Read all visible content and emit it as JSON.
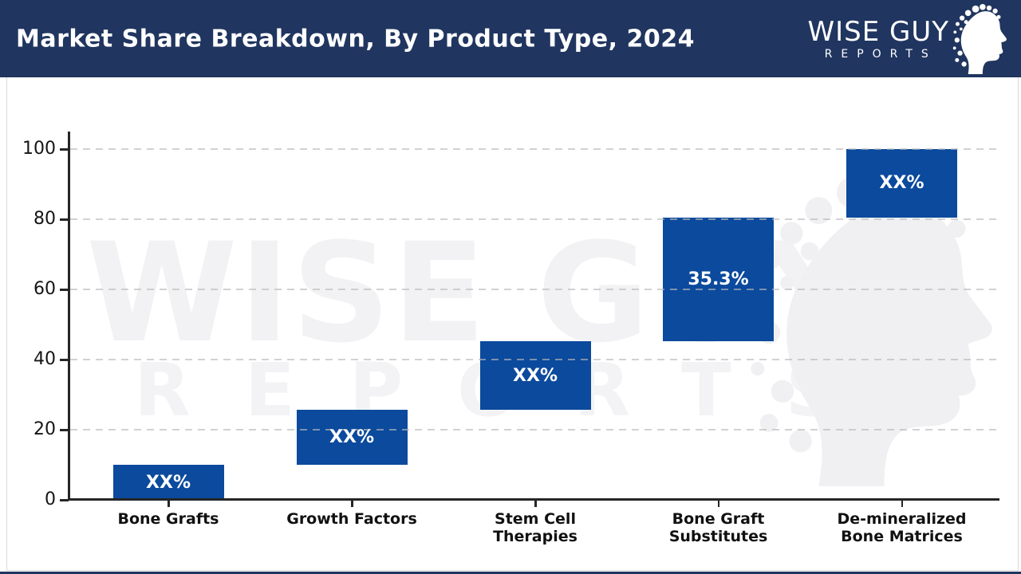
{
  "header": {
    "title": "Market Share Breakdown, By Product Type, 2024",
    "logo": {
      "name": "WISE GUY",
      "subname": "REPORTS"
    }
  },
  "watermark": {
    "name": "WISE GUY",
    "subname": "REPORTS"
  },
  "chart_data": {
    "type": "bar",
    "subtype": "waterfall",
    "title": "Market Share Breakdown, By Product Type, 2024",
    "xlabel": "",
    "ylabel": "",
    "ylim": [
      0,
      105
    ],
    "yticks": [
      0,
      20,
      40,
      60,
      80,
      100
    ],
    "grid": "horizontal dashed",
    "legend": "none",
    "bar_color": "#0B4A9D",
    "value_label_color": "#FFFFFF",
    "categories": [
      "Bone Grafts",
      "Growth Factors",
      "Stem Cell\nTherapies",
      "Bone Graft\nSubstitutes",
      "De-mineralized\nBone Matrices"
    ],
    "segments": [
      {
        "category": "Bone Grafts",
        "start": 0,
        "end": 10,
        "size": 10,
        "label": "XX%"
      },
      {
        "category": "Growth Factors",
        "start": 10,
        "end": 25.7,
        "size": 15.7,
        "label": "XX%"
      },
      {
        "category": "Stem Cell Therapies",
        "start": 25.7,
        "end": 45.2,
        "size": 19.5,
        "label": "XX%"
      },
      {
        "category": "Bone Graft Substitutes",
        "start": 45.2,
        "end": 80.5,
        "size": 35.3,
        "label": "35.3%"
      },
      {
        "category": "De-mineralized Bone Matrices",
        "start": 80.5,
        "end": 100,
        "size": 19.5,
        "label": "XX%"
      }
    ]
  }
}
